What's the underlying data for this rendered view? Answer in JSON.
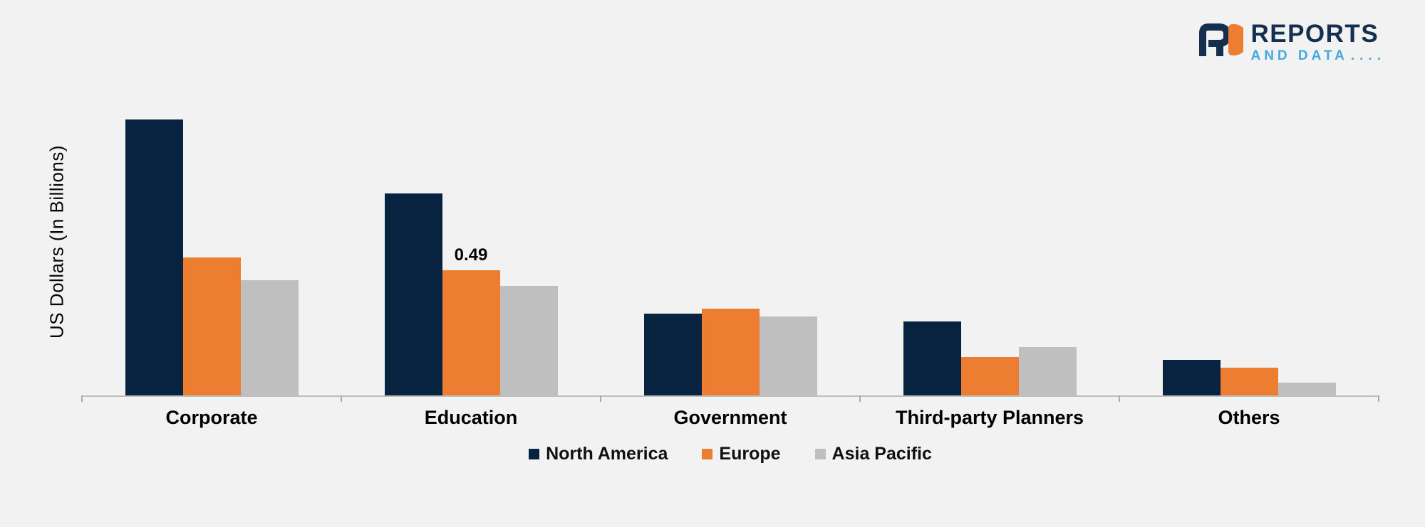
{
  "logo": {
    "name": "REPORTS",
    "subname": "AND DATA",
    "dots": "....",
    "navy": "#15304e",
    "blue": "#41a9e1",
    "orange": "#ed7d31"
  },
  "colors": {
    "background": "#f2f2f2",
    "axis": "#bfbfbf",
    "north_america": "#07233f",
    "europe": "#ed7d31",
    "asia_pacific": "#bfbfbf",
    "text": "#000000"
  },
  "chart_data": {
    "type": "bar",
    "title": "",
    "ylabel": "US Dollars (In Billions)",
    "xlabel": "",
    "ylim": [
      0,
      1.2
    ],
    "grid": false,
    "legend_position": "bottom",
    "categories": [
      "Corporate",
      "Education",
      "Government",
      "Third-party Planners",
      "Others"
    ],
    "series": [
      {
        "name": "North America",
        "color": "#07233f",
        "values": [
          1.08,
          0.79,
          0.32,
          0.29,
          0.14
        ]
      },
      {
        "name": "Europe",
        "color": "#ed7d31",
        "values": [
          0.54,
          0.49,
          0.34,
          0.15,
          0.11
        ]
      },
      {
        "name": "Asia Pacific",
        "color": "#bfbfbf",
        "values": [
          0.45,
          0.43,
          0.31,
          0.19,
          0.05
        ]
      }
    ],
    "data_labels": [
      {
        "series": "Europe",
        "category": "Education",
        "text": "0.49"
      }
    ]
  }
}
